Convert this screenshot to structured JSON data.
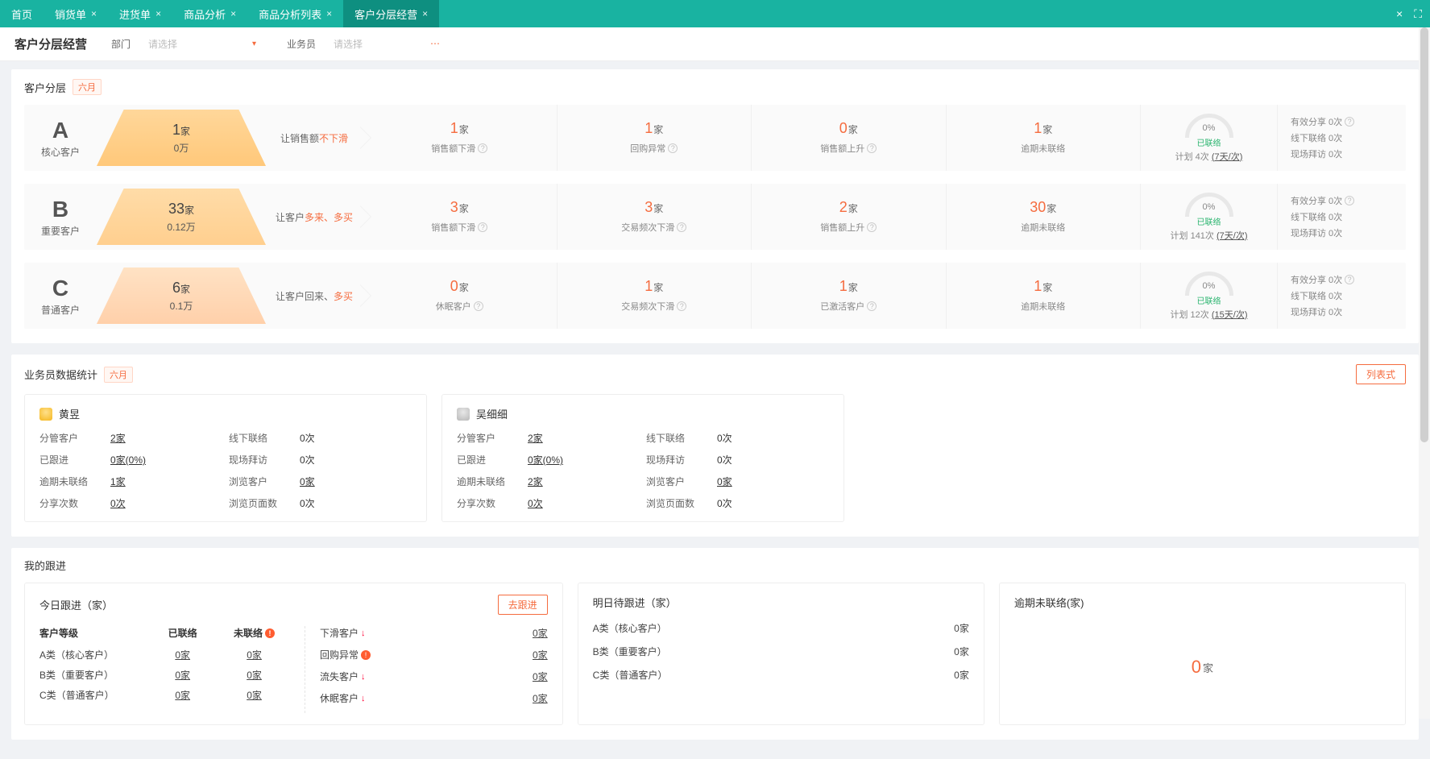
{
  "tabs": {
    "items": [
      {
        "label": "首页",
        "closable": false
      },
      {
        "label": "销货单",
        "closable": true
      },
      {
        "label": "进货单",
        "closable": true
      },
      {
        "label": "商品分析",
        "closable": true
      },
      {
        "label": "商品分析列表",
        "closable": true
      },
      {
        "label": "客户分层经营",
        "closable": true
      }
    ],
    "active_index": 5
  },
  "filters": {
    "page_title": "客户分层经营",
    "dept_label": "部门",
    "dept_placeholder": "请选择",
    "sales_label": "业务员",
    "sales_placeholder": "请选择"
  },
  "tier_panel": {
    "title": "客户分层",
    "month_badge": "六月",
    "rows": [
      {
        "letter": "A",
        "letter_sub": "核心客户",
        "count": "1",
        "count_unit": "家",
        "amount": "0万",
        "slogan_pre": "让销售额",
        "slogan_hl": "不下滑",
        "metrics": [
          {
            "val": "1",
            "unit": "家",
            "label": "销售额下滑",
            "help": true
          },
          {
            "val": "1",
            "unit": "家",
            "label": "回购异常",
            "help": true
          },
          {
            "val": "0",
            "unit": "家",
            "label": "销售额上升",
            "help": true
          },
          {
            "val": "1",
            "unit": "家",
            "label": "逾期未联络",
            "help": false
          }
        ],
        "plan": {
          "pct": "0%",
          "status": "已联络",
          "text_pre": "计划 4次 ",
          "text_u": "(7天/次)"
        },
        "share": [
          {
            "label": "有效分享 0次",
            "help": true
          },
          {
            "label": "线下联络 0次",
            "help": false
          },
          {
            "label": "现场拜访 0次",
            "help": false
          }
        ]
      },
      {
        "letter": "B",
        "letter_sub": "重要客户",
        "count": "33",
        "count_unit": "家",
        "amount": "0.12万",
        "slogan_pre": "让客户",
        "slogan_hl": "多来、多买",
        "metrics": [
          {
            "val": "3",
            "unit": "家",
            "label": "销售额下滑",
            "help": true
          },
          {
            "val": "3",
            "unit": "家",
            "label": "交易频次下滑",
            "help": true
          },
          {
            "val": "2",
            "unit": "家",
            "label": "销售额上升",
            "help": true
          },
          {
            "val": "30",
            "unit": "家",
            "label": "逾期未联络",
            "help": false
          }
        ],
        "plan": {
          "pct": "0%",
          "status": "已联络",
          "text_pre": "计划 141次 ",
          "text_u": "(7天/次)"
        },
        "share": [
          {
            "label": "有效分享 0次",
            "help": true
          },
          {
            "label": "线下联络 0次",
            "help": false
          },
          {
            "label": "现场拜访 0次",
            "help": false
          }
        ]
      },
      {
        "letter": "C",
        "letter_sub": "普通客户",
        "count": "6",
        "count_unit": "家",
        "amount": "0.1万",
        "slogan_pre": "让客户回来、",
        "slogan_hl": "多买",
        "metrics": [
          {
            "val": "0",
            "unit": "家",
            "label": "休眠客户",
            "help": true
          },
          {
            "val": "1",
            "unit": "家",
            "label": "交易频次下滑",
            "help": true
          },
          {
            "val": "1",
            "unit": "家",
            "label": "已激活客户",
            "help": true
          },
          {
            "val": "1",
            "unit": "家",
            "label": "逾期未联络",
            "help": false
          }
        ],
        "plan": {
          "pct": "0%",
          "status": "已联络",
          "text_pre": "计划 12次 ",
          "text_u": "(15天/次)"
        },
        "share": [
          {
            "label": "有效分享 0次",
            "help": true
          },
          {
            "label": "线下联络 0次",
            "help": false
          },
          {
            "label": "现场拜访 0次",
            "help": false
          }
        ]
      }
    ]
  },
  "sales_panel": {
    "title": "业务员数据统计",
    "month_badge": "六月",
    "list_mode_btn": "列表式",
    "cards": [
      {
        "medal": "gold",
        "name": "黄昱",
        "rows": [
          [
            "分管客户",
            "2家",
            "线下联络",
            "0次"
          ],
          [
            "已跟进",
            "0家(0%)",
            "现场拜访",
            "0次"
          ],
          [
            "逾期未联络",
            "1家",
            "浏览客户",
            "0家"
          ],
          [
            "分享次数",
            "0次",
            "浏览页面数",
            "0次"
          ]
        ],
        "underline_cols": [
          true,
          false,
          true,
          false,
          true,
          false,
          true,
          false
        ]
      },
      {
        "medal": "silver",
        "name": "吴细细",
        "rows": [
          [
            "分管客户",
            "2家",
            "线下联络",
            "0次"
          ],
          [
            "已跟进",
            "0家(0%)",
            "现场拜访",
            "0次"
          ],
          [
            "逾期未联络",
            "2家",
            "浏览客户",
            "0家"
          ],
          [
            "分享次数",
            "0次",
            "浏览页面数",
            "0次"
          ]
        ]
      }
    ]
  },
  "follow_panel": {
    "title": "我的跟进",
    "col1": {
      "title": "今日跟进（家）",
      "go_btn": "去跟进",
      "left_headers": [
        "客户等级",
        "已联络",
        "未联络"
      ],
      "left_rows": [
        [
          "A类（核心客户）",
          "0家",
          "0家"
        ],
        [
          "B类（重要客户）",
          "0家",
          "0家"
        ],
        [
          "C类（普通客户）",
          "0家",
          "0家"
        ]
      ],
      "right_rows": [
        {
          "label": "下滑客户",
          "icon": "down",
          "val": "0家"
        },
        {
          "label": "回购异常",
          "icon": "warn",
          "val": "0家"
        },
        {
          "label": "流失客户",
          "icon": "down",
          "val": "0家"
        },
        {
          "label": "休眠客户",
          "icon": "down",
          "val": "0家"
        }
      ]
    },
    "col2": {
      "title": "明日待跟进（家）",
      "rows": [
        [
          "A类（核心客户）",
          "0家"
        ],
        [
          "B类（重要客户）",
          "0家"
        ],
        [
          "C类（普通客户）",
          "0家"
        ]
      ]
    },
    "col3": {
      "title": "逾期未联络(家)",
      "big_val": "0",
      "big_unit": "家"
    }
  },
  "colors": {
    "brand": "#19b3a1",
    "brand_dark": "#0e8f80",
    "accent": "#f56c3f",
    "success": "#26b36c"
  }
}
